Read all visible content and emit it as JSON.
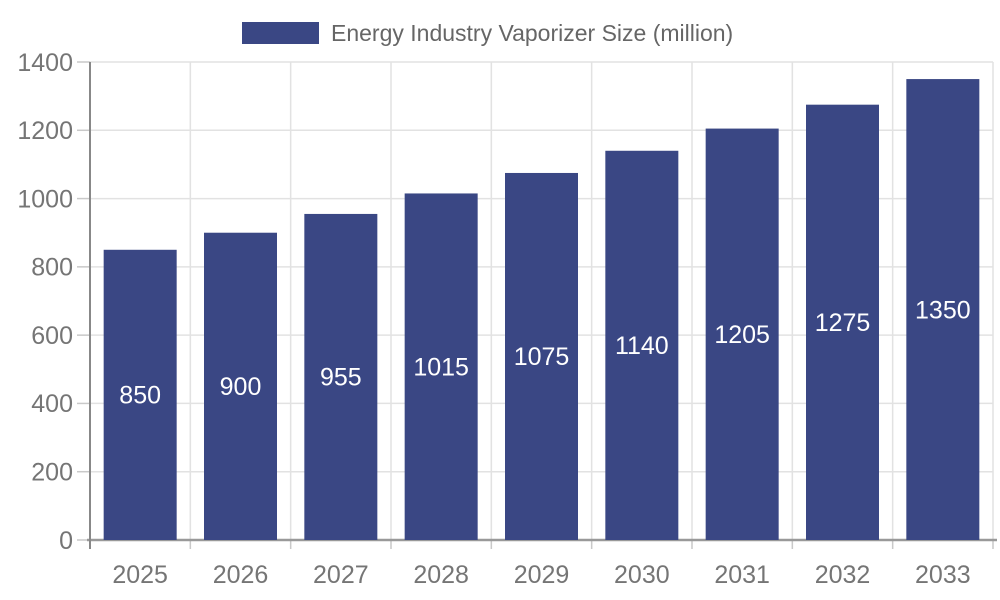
{
  "legend": {
    "label": "Energy Industry Vaporizer Size (million)"
  },
  "colors": {
    "bar": "#3A4784",
    "grid": "#E2E2E2",
    "axis_line": "#999999",
    "y_axis_line": "#888888",
    "tick": "#C9C9C9",
    "axis_label": "#757575",
    "legend_text": "#666666",
    "bar_label": "#FFFFFF",
    "background": "#FFFFFF"
  },
  "chart_data": {
    "type": "bar",
    "title": "Energy Industry Vaporizer Size (million)",
    "legend_entries": [
      "Energy Industry Vaporizer Size (million)"
    ],
    "legend_position": "top",
    "categories": [
      "2025",
      "2026",
      "2027",
      "2028",
      "2029",
      "2030",
      "2031",
      "2032",
      "2033"
    ],
    "values": [
      850,
      900,
      955,
      1015,
      1075,
      1140,
      1205,
      1275,
      1350
    ],
    "xlabel": "",
    "ylabel": "",
    "ylim": [
      0,
      1400
    ],
    "y_ticks": [
      0,
      200,
      400,
      600,
      800,
      1000,
      1200,
      1400
    ],
    "grid": true,
    "bar_labels_inside": true
  }
}
